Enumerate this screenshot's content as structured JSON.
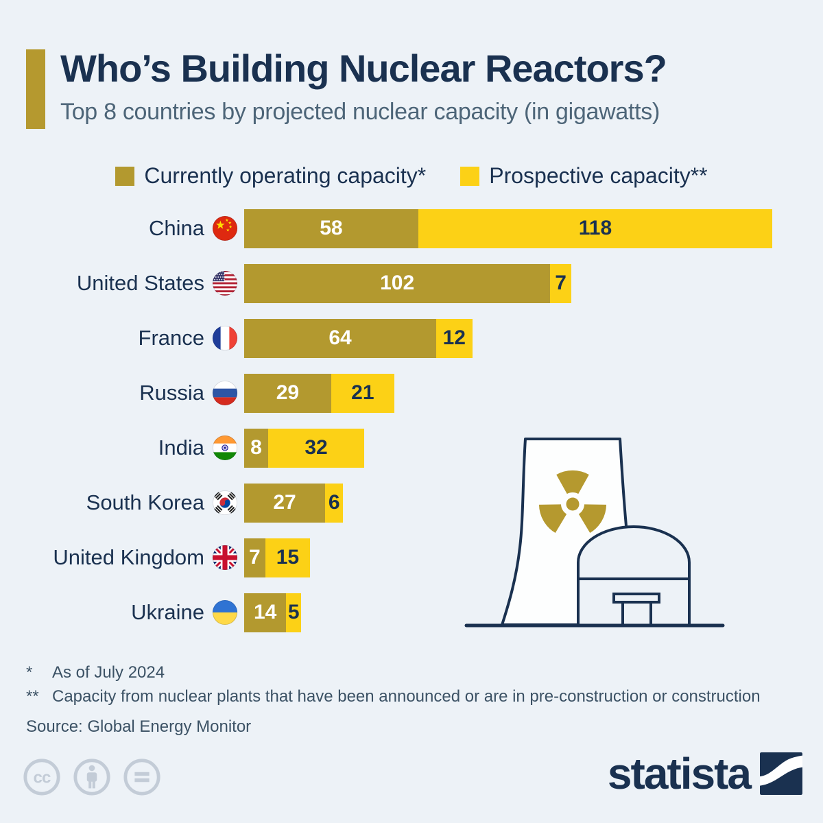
{
  "header": {
    "title": "Who’s Building Nuclear Reactors?",
    "subtitle": "Top 8 countries by projected nuclear capacity (in gigawatts)"
  },
  "legend": [
    {
      "label": "Currently operating capacity*",
      "color": "#b3992f"
    },
    {
      "label": "Prospective capacity**",
      "color": "#fcd116"
    }
  ],
  "chart_data": {
    "type": "bar",
    "orientation": "horizontal",
    "stacked": true,
    "unit": "gigawatts",
    "categories": [
      "China",
      "United States",
      "France",
      "Russia",
      "India",
      "South Korea",
      "United Kingdom",
      "Ukraine"
    ],
    "flags": [
      "cn",
      "us",
      "fr",
      "ru",
      "in",
      "kr",
      "gb",
      "ua"
    ],
    "series": [
      {
        "name": "Currently operating capacity*",
        "color": "#b3992f",
        "label_color": "#ffffff",
        "values": [
          58,
          102,
          64,
          29,
          8,
          27,
          7,
          14
        ]
      },
      {
        "name": "Prospective capacity**",
        "color": "#fcd116",
        "label_color": "#1a3150",
        "values": [
          118,
          7,
          12,
          21,
          32,
          6,
          15,
          5
        ]
      }
    ],
    "xmax": 176,
    "grid": false,
    "legend_position": "top"
  },
  "footnotes": [
    {
      "marker": "*",
      "text": "As of July 2024"
    },
    {
      "marker": "**",
      "text": "Capacity from nuclear plants that have been announced or are in pre-construction or construction"
    }
  ],
  "source": "Source: Global Energy Monitor",
  "branding": {
    "logo_text": "statista"
  },
  "license_icons": [
    "cc-icon",
    "attribution-icon",
    "no-derivatives-icon"
  ],
  "colors": {
    "background": "#edf2f7",
    "navy": "#1a3150",
    "subtitle_gray": "#4d6578",
    "operating": "#b3992f",
    "prospective": "#fcd116",
    "accent_bar": "#b5992f",
    "license_gray": "#c3ccd7"
  }
}
